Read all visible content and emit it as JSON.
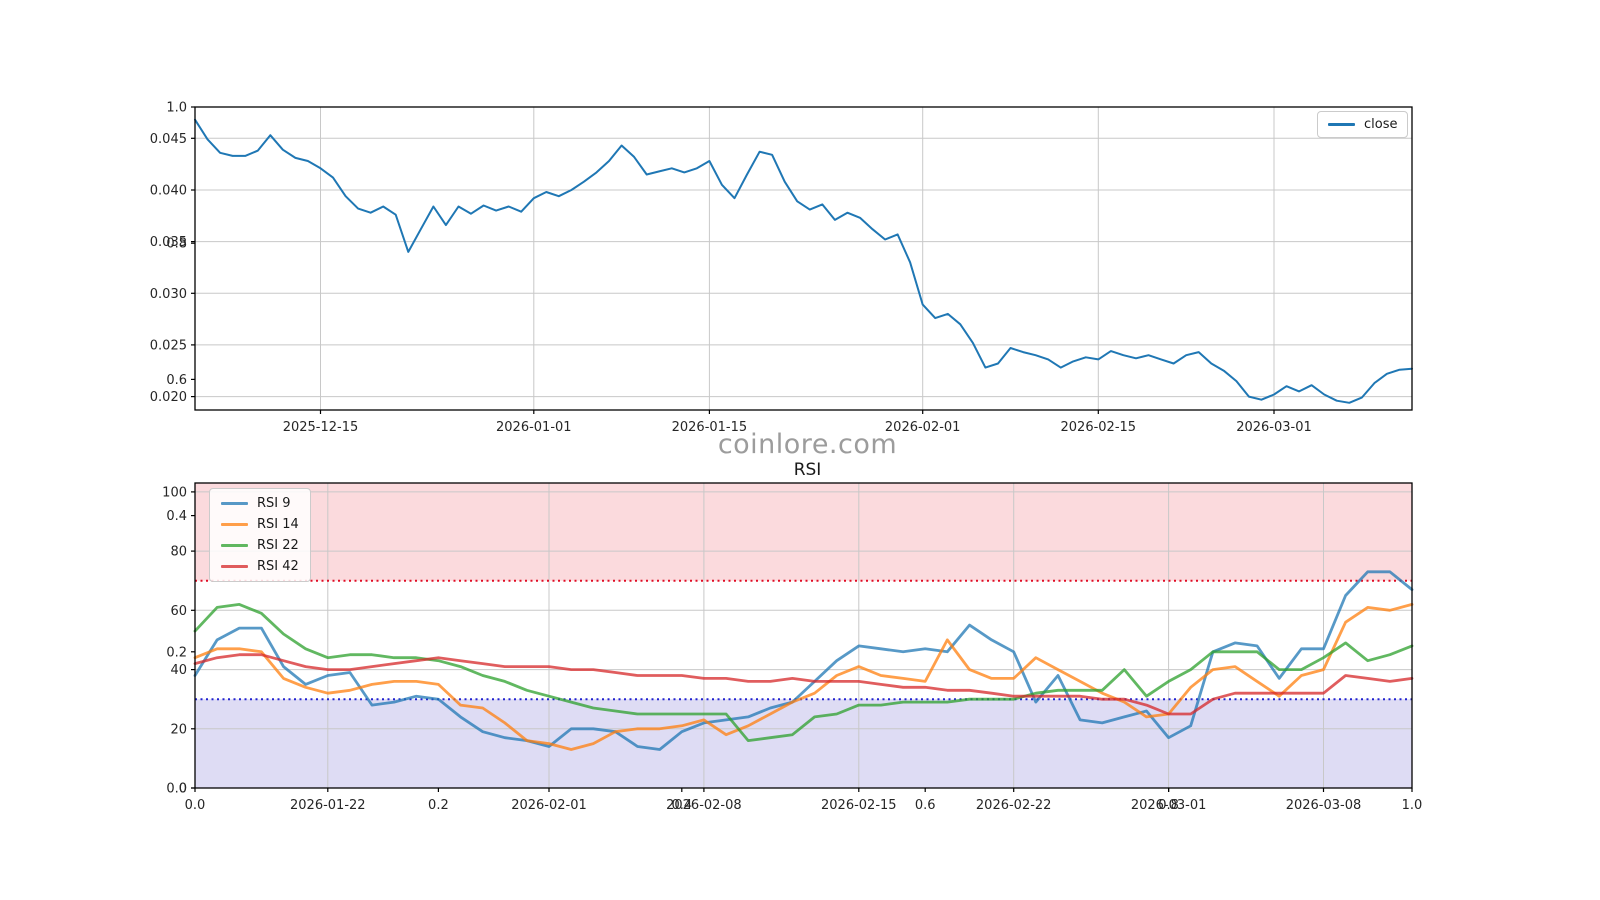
{
  "watermark_text": "coinlore.com",
  "colors": {
    "close_line": "#1f77b4",
    "rsi9": "#1f77b4",
    "rsi14": "#ff7f0e",
    "rsi22": "#2ca02c",
    "rsi42": "#d62728",
    "overbought_band": "#fbdadd",
    "oversold_band": "#dedcf4",
    "overbought_line": "#e00d25",
    "oversold_line": "#2222cf",
    "grid": "#c8c8c8",
    "watermark": "#9c9c9c"
  },
  "overlay_axis": {
    "x_tick_labels": [
      "0.0",
      "0.2",
      "0.4",
      "0.6",
      "0.8",
      "1.0"
    ],
    "y_tick_labels": [
      "1.0",
      "0.8",
      "0.6",
      "0.4",
      "0.2",
      "0.0"
    ]
  },
  "chart_data": [
    {
      "id": "price",
      "type": "line",
      "title": "",
      "x_start": "2025-12-05",
      "x_end": "2026-03-12",
      "x_tick_dates": [
        "2025-12-15",
        "2026-01-01",
        "2026-01-15",
        "2026-02-01",
        "2026-02-15",
        "2026-03-01"
      ],
      "y_tick_values": [
        0.02,
        0.025,
        0.03,
        0.035,
        0.04,
        0.045
      ],
      "y_tick_labels": [
        "0.020",
        "0.025",
        "0.030",
        "0.035",
        "0.040",
        "0.045"
      ],
      "ylim": [
        0.0187,
        0.04803
      ],
      "grid": true,
      "legend_position": "upper right",
      "series": [
        {
          "name": "close",
          "color": "#1f77b4",
          "opacity": 1,
          "width": 2,
          "values": [
            0.0468,
            0.0449,
            0.0436,
            0.0433,
            0.0433,
            0.0438,
            0.0453,
            0.0439,
            0.0431,
            0.0428,
            0.0421,
            0.0412,
            0.0394,
            0.0382,
            0.0378,
            0.0384,
            0.0376,
            0.034,
            0.0362,
            0.0384,
            0.0366,
            0.0384,
            0.0377,
            0.0385,
            0.038,
            0.0384,
            0.0379,
            0.0392,
            0.0398,
            0.0394,
            0.04,
            0.0408,
            0.0417,
            0.0428,
            0.0443,
            0.0432,
            0.0415,
            0.0418,
            0.0421,
            0.0417,
            0.0421,
            0.0428,
            0.0405,
            0.0392,
            0.0415,
            0.0437,
            0.0434,
            0.0408,
            0.0389,
            0.0381,
            0.0386,
            0.0371,
            0.0378,
            0.0373,
            0.0362,
            0.0352,
            0.0357,
            0.033,
            0.0289,
            0.0276,
            0.028,
            0.027,
            0.0252,
            0.0228,
            0.0232,
            0.0247,
            0.0243,
            0.024,
            0.0236,
            0.0228,
            0.0234,
            0.0238,
            0.0236,
            0.0244,
            0.024,
            0.0237,
            0.024,
            0.0236,
            0.0232,
            0.024,
            0.0243,
            0.0232,
            0.0225,
            0.0215,
            0.02,
            0.0197,
            0.0202,
            0.021,
            0.0205,
            0.0211,
            0.0202,
            0.0196,
            0.0194,
            0.0199,
            0.0213,
            0.0222,
            0.0226,
            0.0227
          ]
        }
      ]
    },
    {
      "id": "rsi",
      "type": "line",
      "title": "RSI",
      "x_start": "2026-01-16",
      "x_end": "2026-03-12",
      "x_tick_dates": [
        "2026-01-22",
        "2026-02-01",
        "2026-02-08",
        "2026-02-15",
        "2026-02-22",
        "2026-03-01",
        "2026-03-08"
      ],
      "y_tick_values": [
        0,
        20,
        40,
        60,
        80,
        100
      ],
      "y_tick_labels": [
        "0",
        "20",
        "40",
        "60",
        "80",
        "100"
      ],
      "ylim": [
        0,
        103
      ],
      "grid": true,
      "legend_position": "upper left",
      "overbought_level": 70,
      "oversold_level": 30,
      "bands": [
        {
          "from": 70,
          "to": 103,
          "color": "#fbdadd"
        },
        {
          "from": 0,
          "to": 30,
          "color": "#dedcf4"
        }
      ],
      "hlines": [
        {
          "y": 70,
          "color": "#e00d25",
          "style": "dotted"
        },
        {
          "y": 30,
          "color": "#2222cf",
          "style": "dotted"
        }
      ],
      "series": [
        {
          "name": "RSI 9",
          "color": "#1f77b4",
          "opacity": 0.75,
          "width": 2.8,
          "values": [
            38,
            50,
            54,
            54,
            41,
            35,
            38,
            39,
            28,
            29,
            31,
            30,
            24,
            19,
            17,
            16,
            14,
            20,
            20,
            19,
            14,
            13,
            19,
            22,
            23,
            24,
            27,
            29,
            36,
            43,
            48,
            47,
            46,
            47,
            46,
            55,
            50,
            46,
            29,
            38,
            23,
            22,
            24,
            26,
            17,
            21,
            46,
            49,
            48,
            37,
            47,
            47,
            65,
            73,
            73,
            67
          ]
        },
        {
          "name": "RSI 14",
          "color": "#ff7f0e",
          "opacity": 0.75,
          "width": 2.8,
          "values": [
            44,
            47,
            47,
            46,
            37,
            34,
            32,
            33,
            35,
            36,
            36,
            35,
            28,
            27,
            22,
            16,
            15,
            13,
            15,
            19,
            20,
            20,
            21,
            23,
            18,
            21,
            25,
            29,
            32,
            38,
            41,
            38,
            37,
            36,
            50,
            40,
            37,
            37,
            44,
            40,
            36,
            32,
            29,
            24,
            25,
            34,
            40,
            41,
            36,
            31,
            38,
            40,
            56,
            61,
            60,
            62
          ]
        },
        {
          "name": "RSI 22",
          "color": "#2ca02c",
          "opacity": 0.75,
          "width": 2.8,
          "values": [
            53,
            61,
            62,
            59,
            52,
            47,
            44,
            45,
            45,
            44,
            44,
            43,
            41,
            38,
            36,
            33,
            31,
            29,
            27,
            26,
            25,
            25,
            25,
            25,
            25,
            16,
            17,
            18,
            24,
            25,
            28,
            28,
            29,
            29,
            29,
            30,
            30,
            30,
            32,
            33,
            33,
            33,
            40,
            31,
            36,
            40,
            46,
            46,
            46,
            40,
            40,
            44,
            49,
            43,
            45,
            48
          ]
        },
        {
          "name": "RSI 42",
          "color": "#d62728",
          "opacity": 0.75,
          "width": 2.8,
          "values": [
            42,
            44,
            45,
            45,
            43,
            41,
            40,
            40,
            41,
            42,
            43,
            44,
            43,
            42,
            41,
            41,
            41,
            40,
            40,
            39,
            38,
            38,
            38,
            37,
            37,
            36,
            36,
            37,
            36,
            36,
            36,
            35,
            34,
            34,
            33,
            33,
            32,
            31,
            31,
            31,
            31,
            30,
            30,
            28,
            25,
            25,
            30,
            32,
            32,
            32,
            32,
            32,
            38,
            37,
            36,
            37
          ]
        }
      ]
    }
  ]
}
